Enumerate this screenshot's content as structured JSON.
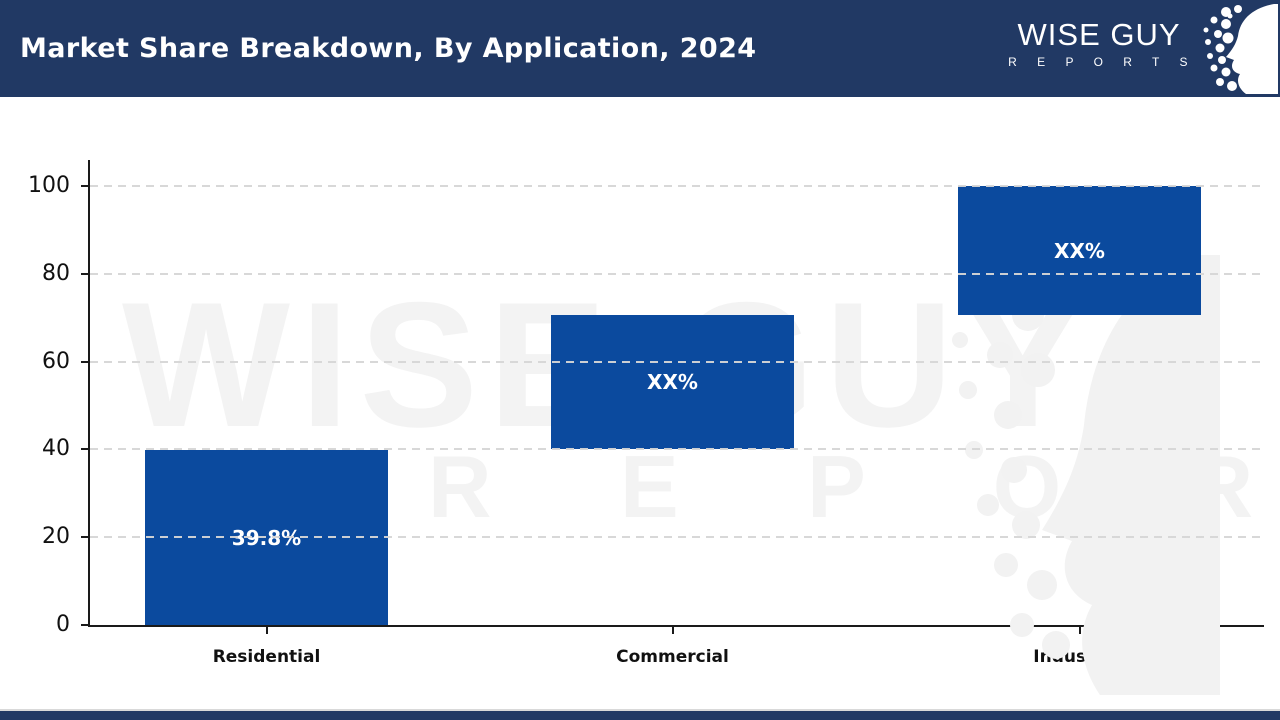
{
  "header": {
    "title": "Market Share Breakdown, By Application, 2024",
    "logo_line1": "WISE GUY",
    "logo_line2": "R E P O R T S"
  },
  "watermark": {
    "line1": "WISE GUY",
    "line2": "R E P O R T S"
  },
  "chart_data": {
    "type": "bar",
    "variant": "waterfall-stacked-range",
    "title": "Market Share Breakdown, By Application, 2024",
    "categories": [
      "Residential",
      "Commercial",
      "Industrial"
    ],
    "segments": [
      {
        "category": "Residential",
        "start": 0,
        "end": 39.8,
        "label": "39.8%"
      },
      {
        "category": "Commercial",
        "start": 40,
        "end": 70.6,
        "label": "XX%"
      },
      {
        "category": "Industrial",
        "start": 70.6,
        "end": 100,
        "label": "XX%"
      }
    ],
    "xlabel": "",
    "ylabel": "",
    "ylim": [
      0,
      100
    ],
    "y_ticks": [
      0,
      20,
      40,
      60,
      80,
      100
    ],
    "grid": "horizontal-dashed",
    "legend": "none",
    "bar_color": "#0b4a9e",
    "bar_label_color": "#ffffff",
    "axis_color": "#1a1a1a",
    "gridline_color": "#d6d6d6"
  },
  "colors": {
    "header_bg": "#213964",
    "footer_bg": "#213964",
    "watermark": "#f3f3f3",
    "background": "#ffffff"
  }
}
